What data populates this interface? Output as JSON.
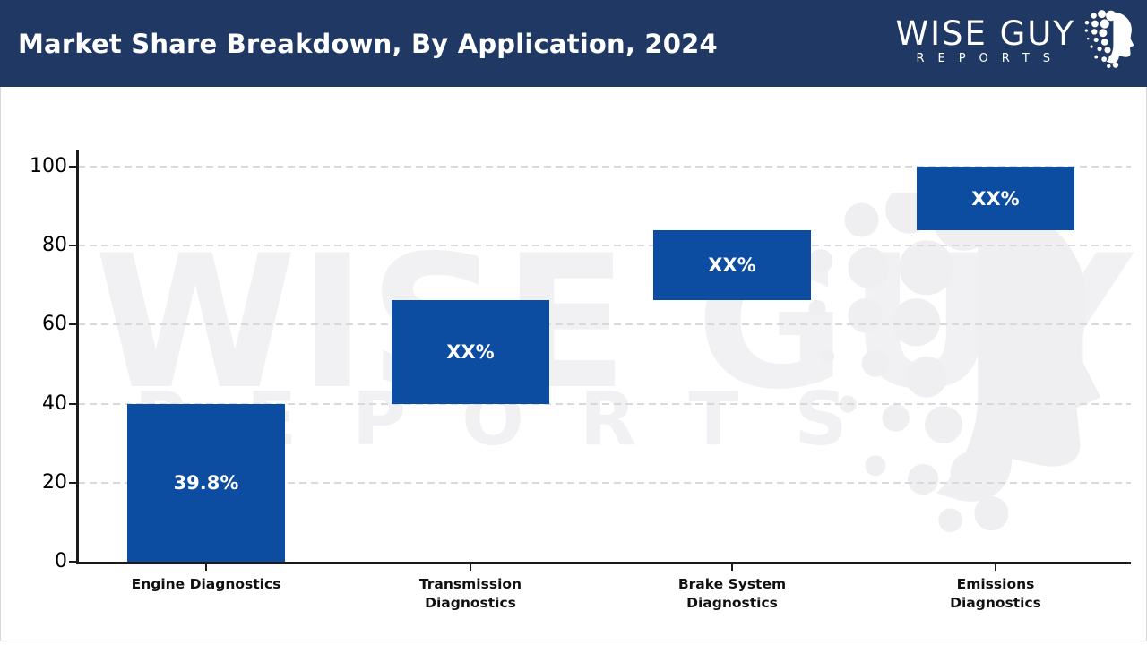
{
  "header": {
    "title": "Market Share Breakdown, By Application, 2024",
    "logo_line1": "WISE GUY",
    "logo_line2": "REPORTS"
  },
  "watermark": {
    "line1": "WISE GUY",
    "line2": "REPORTS"
  },
  "colors": {
    "header_bg": "#203864",
    "bar_blue": "#0d4da1",
    "watermark_gray": "#f1f1f3",
    "axis_black": "#1c1c1c",
    "grid_gray": "#d9d9d9"
  },
  "chart_data": {
    "type": "bar",
    "subtype": "floating-waterfall",
    "title": "Market Share Breakdown, By Application, 2024",
    "categories": [
      "Engine Diagnostics",
      "Transmission Diagnostics",
      "Brake System Diagnostics",
      "Emissions Diagnostics"
    ],
    "bars": [
      {
        "category": "Engine Diagnostics",
        "lines": [
          "Engine Diagnostics"
        ],
        "start": 0,
        "end": 39.8,
        "label": "39.8%"
      },
      {
        "category": "Transmission Diagnostics",
        "lines": [
          "Transmission",
          "Diagnostics"
        ],
        "start": 39.8,
        "end": 66.3,
        "label": "XX%"
      },
      {
        "category": "Brake System Diagnostics",
        "lines": [
          "Brake System",
          "Diagnostics"
        ],
        "start": 66.3,
        "end": 83.9,
        "label": "XX%"
      },
      {
        "category": "Emissions Diagnostics",
        "lines": [
          "Emissions",
          "Diagnostics"
        ],
        "start": 83.9,
        "end": 100,
        "label": "XX%"
      }
    ],
    "ylim": [
      0,
      100
    ],
    "yticks": [
      0,
      20,
      40,
      60,
      80,
      100
    ],
    "xlabel": "",
    "ylabel": "",
    "grid": {
      "horizontal": true,
      "style": "dashed"
    },
    "legend": null,
    "bar_color": "#0d4da1",
    "bar_label_color": "#ffffff"
  }
}
